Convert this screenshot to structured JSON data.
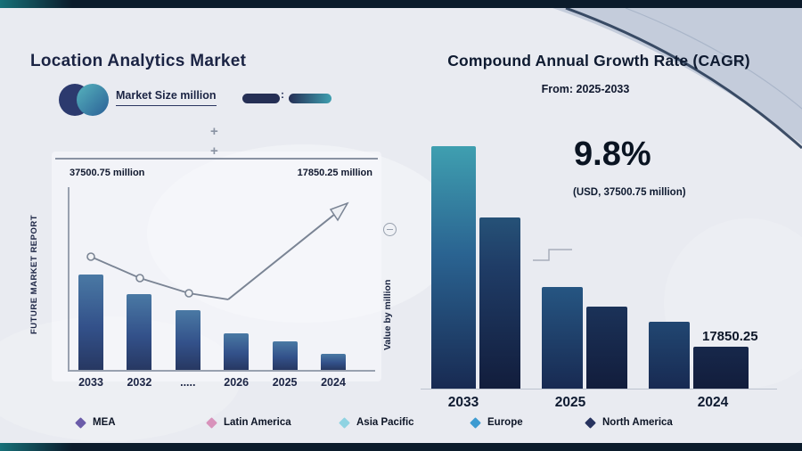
{
  "colors": {
    "background": "#e9ebf1",
    "border_bar": "#0b1b2b",
    "title": "#1b2444",
    "teal": "#3f9fb0",
    "navy": "#1b2f58"
  },
  "left_section": {
    "title": "Location Analytics Market",
    "legend_label": "Market Size million",
    "side_label": "FUTURE MARKET REPORT",
    "value_axis_label": "Value by million",
    "annotation_left": "37500.75 million",
    "annotation_right": "17850.25 million"
  },
  "right_section": {
    "title": "Compound Annual Growth Rate (CAGR)",
    "subtitle": "From: 2025-2033",
    "cagr_value": "9.8%",
    "cagr_caption": "(USD, 37500.75 million)",
    "data_label": "17850.25"
  },
  "footer_legend": [
    {
      "label": "MEA",
      "color": "#6b5ca9"
    },
    {
      "label": "Latin America",
      "color": "#d892bb"
    },
    {
      "label": "Asia Pacific",
      "color": "#8fd3e2"
    },
    {
      "label": "Europe",
      "color": "#3d9bd1"
    },
    {
      "label": "North America",
      "color": "#27335f"
    }
  ],
  "chart_data": [
    {
      "type": "bar",
      "title": "Location Analytics Market",
      "legend": [
        "Market Size million"
      ],
      "categories": [
        "2033",
        "2032",
        ".....",
        "2026",
        "2025",
        "2024"
      ],
      "values_relative": [
        107,
        85,
        67,
        41,
        32,
        18
      ],
      "annotations": [
        "37500.75 million",
        "17850.25 million"
      ],
      "ylabel": "Value by million",
      "xlabel": "",
      "notes": "bars decrease from 2033 to 2024; overlaid trend line with circular markers and an upward arrow annotation"
    },
    {
      "type": "bar",
      "title": "Compound Annual Growth Rate (CAGR)",
      "subtitle": "From: 2025-2033",
      "cagr": "9.8%",
      "caption": "(USD, 37500.75 million)",
      "categories": [
        "2033",
        "2025",
        "2024"
      ],
      "series": [
        {
          "name": "primary",
          "values_relative": [
            272,
            114,
            75
          ]
        },
        {
          "name": "secondary",
          "values_relative": [
            192,
            92,
            47
          ]
        }
      ],
      "data_labels": {
        "2024": "17850.25"
      }
    }
  ]
}
